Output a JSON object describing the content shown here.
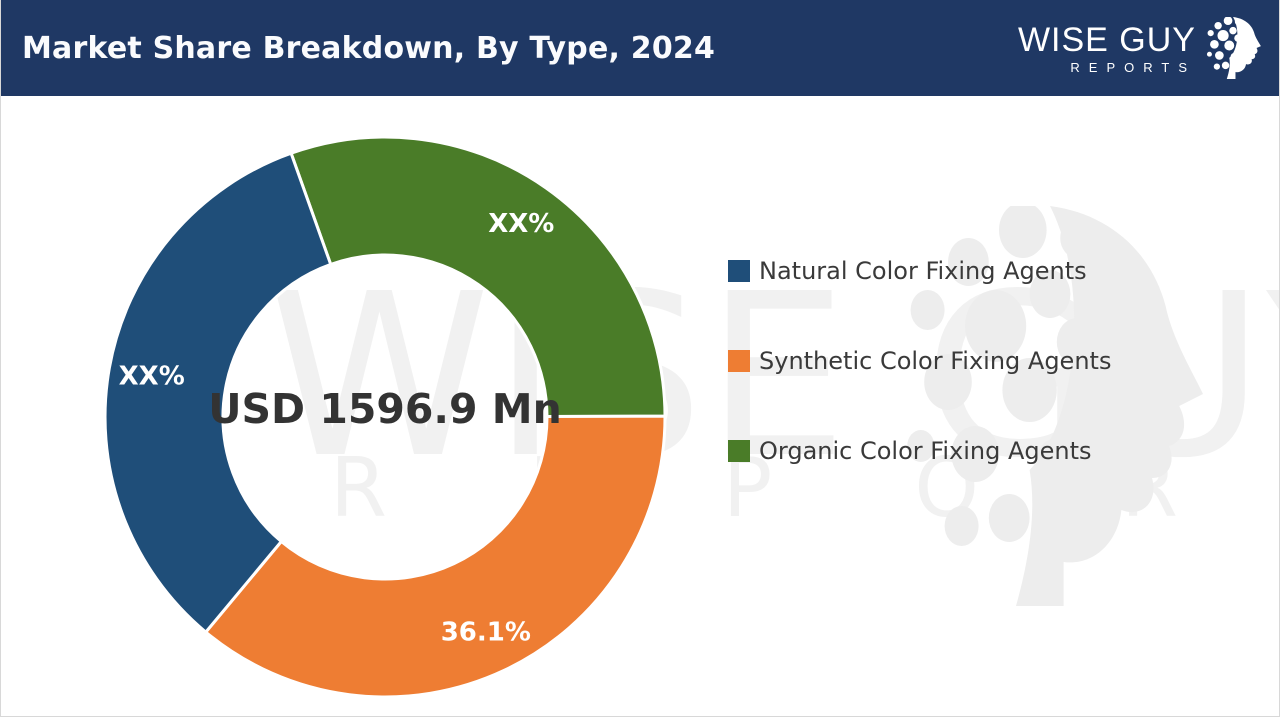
{
  "header": {
    "title": "Market Share Breakdown, By Type, 2024",
    "brand": {
      "name": "WISE GUY",
      "subtitle": "REPORTS"
    }
  },
  "watermark": {
    "line1": "WISE GUY",
    "line2": "R E P O R T S"
  },
  "chart_data": {
    "type": "donut",
    "title": "Market Share Breakdown, By Type, 2024",
    "center_label": "USD 1596.9 Mn",
    "start_angle_deg": -19.6,
    "inner_radius_ratio": 0.58,
    "legend_position": "right",
    "slices": [
      {
        "id": "organic",
        "label": "Organic Color Fixing Agents",
        "display_value": "XX%",
        "percent": 30.4,
        "color": "#4a7c28"
      },
      {
        "id": "synthetic",
        "label": "Synthetic Color Fixing Agents",
        "display_value": "36.1%",
        "percent": 36.1,
        "color": "#ee7d33"
      },
      {
        "id": "natural",
        "label": "Natural Color Fixing Agents",
        "display_value": "XX%",
        "percent": 33.5,
        "color": "#1f4e79"
      }
    ]
  },
  "legend": {
    "items": [
      {
        "id": "natural",
        "label": "Natural Color Fixing Agents",
        "color": "#1f4e79"
      },
      {
        "id": "synthetic",
        "label": "Synthetic Color Fixing Agents",
        "color": "#ee7d33"
      },
      {
        "id": "organic",
        "label": "Organic Color Fixing Agents",
        "color": "#4a7c28"
      }
    ]
  },
  "colors": {
    "header_bg": "#1f3864",
    "slice_separator": "#ffffff",
    "center_text": "#333333",
    "legend_text": "#3a3a3a",
    "watermark": "#f1f1f1",
    "border": "#d8d8d8"
  }
}
